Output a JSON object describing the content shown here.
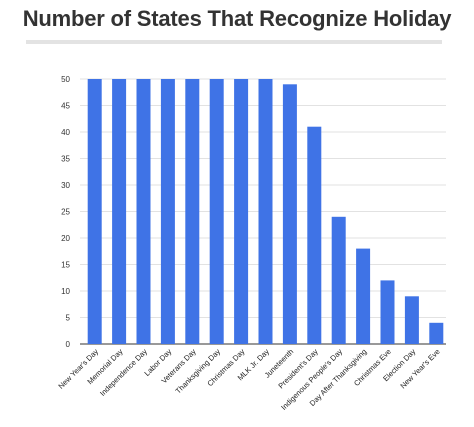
{
  "chart_data": {
    "type": "bar",
    "title": "Number of States That Recognize Holiday",
    "xlabel": "",
    "ylabel": "",
    "ylim": [
      0,
      50
    ],
    "yticks": [
      0,
      5,
      10,
      15,
      20,
      25,
      30,
      35,
      40,
      45,
      50
    ],
    "grid": true,
    "legend": "none",
    "bar_color": "#3f73e6",
    "categories": [
      "New Year's Day",
      "Memorial Day",
      "Independence Day",
      "Labor Day",
      "Veterans Day",
      "Thanksgiving Day",
      "Christmas Day",
      "MLK Jr. Day",
      "Juneteenth",
      "President's Day",
      "Indigenous People's Day",
      "Day After Thanksgiving",
      "Christmas Eve",
      "Election Day",
      "New Year's Eve"
    ],
    "values": [
      50,
      50,
      50,
      50,
      50,
      50,
      50,
      50,
      49,
      41,
      24,
      18,
      12,
      9,
      4
    ]
  }
}
